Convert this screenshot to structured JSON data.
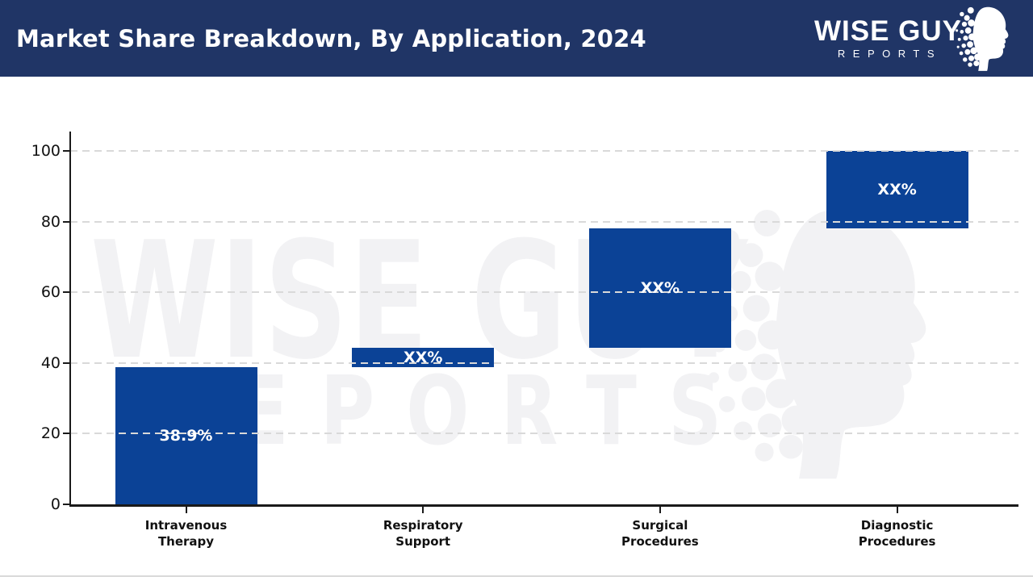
{
  "header": {
    "title": "Market Share Breakdown, By Application, 2024",
    "logo": {
      "primary": "WISE GUY",
      "secondary": "REPORTS"
    }
  },
  "watermark": {
    "primary": "WISE GUY",
    "secondary": "REPORTS"
  },
  "chart_data": {
    "type": "bar",
    "subtype": "waterfall",
    "title": "Market Share Breakdown, By Application, 2024",
    "categories": [
      "Intravenous Therapy",
      "Respiratory Support",
      "Surgical Procedures",
      "Diagnostic Procedures"
    ],
    "bars": [
      {
        "category": "Intravenous Therapy",
        "start": 0,
        "end": 38.9,
        "label": "38.9%"
      },
      {
        "category": "Respiratory Support",
        "start": 38.9,
        "end": 44.4,
        "label": "XX%"
      },
      {
        "category": "Surgical Procedures",
        "start": 44.4,
        "end": 78.0,
        "label": "XX%"
      },
      {
        "category": "Diagnostic Procedures",
        "start": 78.0,
        "end": 100.0,
        "label": "XX%"
      }
    ],
    "xlabel": "",
    "ylabel": "",
    "y_ticks": [
      0,
      20,
      40,
      60,
      80,
      100
    ],
    "ylim": [
      0,
      105.7
    ],
    "grid": "horizontal-dashed",
    "legend": "none",
    "bar_color": "#0b4296",
    "bar_label_color": "#ffffff",
    "axis_color": "#1a1a1a",
    "gridline_color": "#d9d9d9"
  },
  "colors": {
    "header_bg": "#203566",
    "header_text": "#ffffff",
    "page_bg": "#ffffff",
    "watermark": "#f2f2f4"
  }
}
